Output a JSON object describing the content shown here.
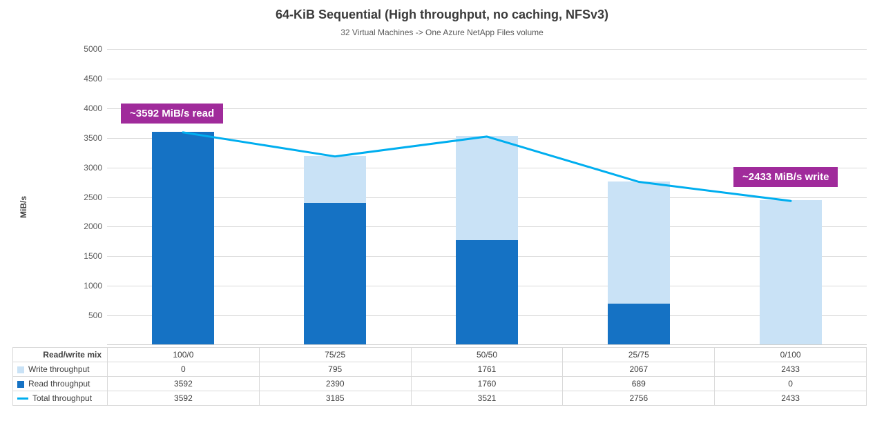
{
  "chart_data": {
    "type": "bar",
    "stacked": true,
    "title": "64-KiB Sequential (High throughput, no caching, NFSv3)",
    "subtitle": "32 Virtual Machines -> One Azure NetApp Files volume",
    "ylabel": "MiB/s",
    "ylim": [
      0,
      5000
    ],
    "ytick_step": 500,
    "grid": true,
    "legend_position": "table-left",
    "category_axis_label": "Read/write mix",
    "categories": [
      "100/0",
      "75/25",
      "50/50",
      "25/75",
      "0/100"
    ],
    "series": [
      {
        "name": "Write throughput",
        "type": "bar",
        "color": "#c9e2f6",
        "values": [
          0,
          795,
          1761,
          2067,
          2433
        ]
      },
      {
        "name": "Read throughput",
        "type": "bar",
        "color": "#1572c4",
        "values": [
          3592,
          2390,
          1760,
          689,
          0
        ]
      },
      {
        "name": "Total throughput",
        "type": "line",
        "color": "#00aeef",
        "values": [
          3592,
          3185,
          3521,
          2756,
          2433
        ]
      }
    ],
    "annotations": [
      {
        "text": "~3592 MiB/s read",
        "color": "#a02b9b"
      },
      {
        "text": "~2433 MiB/s write",
        "color": "#a02b9b"
      }
    ]
  }
}
